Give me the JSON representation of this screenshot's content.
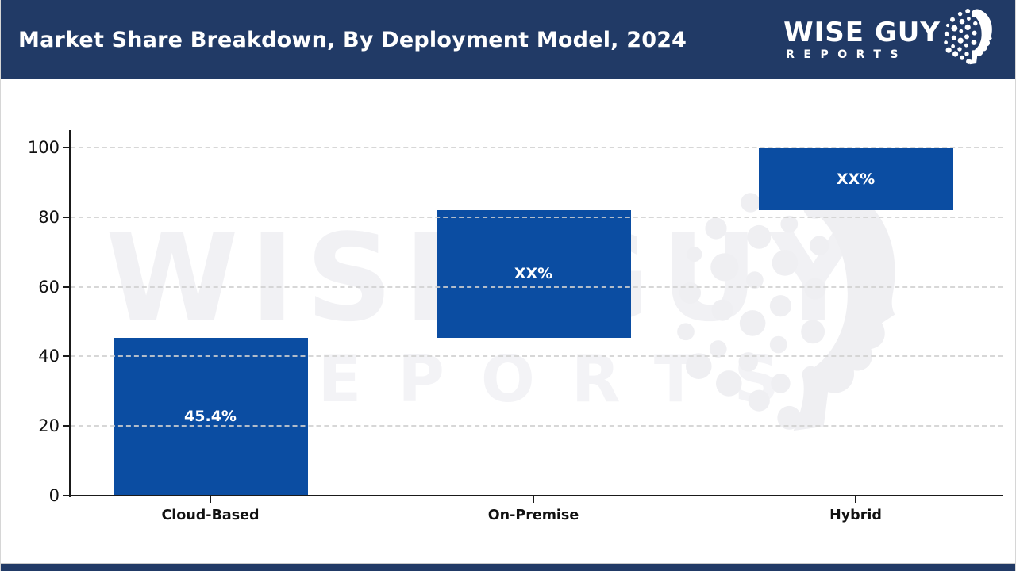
{
  "header": {
    "title": "Market Share Breakdown, By Deployment Model, 2024",
    "logo": {
      "name_line": "WISE GUY",
      "sub_line": "REPORTS"
    }
  },
  "watermark": {
    "name_line": "WISE GUY",
    "sub_line": "REPORTS"
  },
  "chart_data": {
    "type": "bar",
    "variant": "floating-segment-waterfall",
    "title": "Market Share Breakdown, By Deployment Model, 2024",
    "categories": [
      "Cloud-Based",
      "On-Premise",
      "Hybrid"
    ],
    "bars": [
      {
        "category": "Cloud-Based",
        "start": 0,
        "end": 45.4,
        "label": "45.4%"
      },
      {
        "category": "On-Premise",
        "start": 45.4,
        "end": 82,
        "label": "XX%"
      },
      {
        "category": "Hybrid",
        "start": 82,
        "end": 100,
        "label": "XX%"
      }
    ],
    "ylim": [
      0,
      100
    ],
    "y_ticks": [
      0,
      20,
      40,
      60,
      80,
      100
    ],
    "xlabel": "",
    "ylabel": "",
    "grid": "horizontal-dashed",
    "legend": "none",
    "colors": {
      "bar": "#0B4DA2",
      "bar_label": "#FFFFFF",
      "grid": "#D8D8D8",
      "axis": "#1A1A1A",
      "header_bg": "#213A66",
      "watermark": "#F1F1F4"
    }
  }
}
